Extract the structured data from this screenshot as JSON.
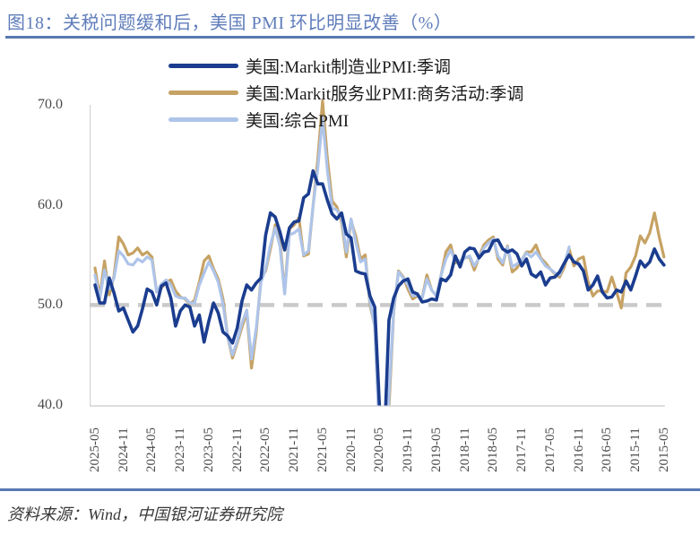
{
  "title": "图18：关税问题缓和后，美国 PMI 环比明显改善（%）",
  "source": "资料来源：Wind，中国银河证券研究院",
  "theme": {
    "title_color": "#5F7DBB",
    "rule_color": "#5878B2",
    "reference_line_color": "#C9C9C9",
    "axis_line_color": "#D4D4D4",
    "tick_label_color": "#4A4A4A"
  },
  "chart_data": {
    "type": "line",
    "title": "图18：关税问题缓和后，美国 PMI 环比明显改善（%）",
    "xlabel": "",
    "ylabel": "",
    "ylim": [
      40,
      70
    ],
    "y_ticks": [
      "70.0",
      "60.0",
      "50.0",
      "40.0"
    ],
    "y_tick_values": [
      70,
      60,
      50,
      40
    ],
    "reference_line": 50.0,
    "grid": false,
    "legend_position": "top",
    "x_axis_note": "monthly data, time axis reversed: newest (2025-05) at left, oldest (2015-05) at right",
    "x_monthly_left": "2025-05",
    "x_monthly_right": "2015-05",
    "x_tick_labels": [
      "2025-05",
      "2024-11",
      "2024-05",
      "2023-11",
      "2023-05",
      "2022-11",
      "2022-05",
      "2021-11",
      "2021-05",
      "2020-11",
      "2020-05",
      "2019-11",
      "2019-05",
      "2018-11",
      "2018-05",
      "2017-11",
      "2017-05",
      "2016-11",
      "2016-05",
      "2015-11",
      "2015-05"
    ],
    "series": [
      {
        "name": "美国:Markit制造业PMI:季调",
        "color": "#1B3D8F",
        "width": 3.6,
        "z": 3,
        "values": [
          52.0,
          50.2,
          50.2,
          52.7,
          51.2,
          49.4,
          49.7,
          48.5,
          47.3,
          47.9,
          49.6,
          51.6,
          51.3,
          50.0,
          51.9,
          52.2,
          50.7,
          47.9,
          49.4,
          50.0,
          49.8,
          47.9,
          49.0,
          46.3,
          48.4,
          50.2,
          49.2,
          47.3,
          46.9,
          46.2,
          47.7,
          50.4,
          52.0,
          51.5,
          52.2,
          52.7,
          57.0,
          59.2,
          58.8,
          57.3,
          55.5,
          57.7,
          58.3,
          58.4,
          60.7,
          61.1,
          63.4,
          62.1,
          62.1,
          60.5,
          59.1,
          58.6,
          59.2,
          57.1,
          56.7,
          53.4,
          53.2,
          53.1,
          50.9,
          49.8,
          39.8,
          36.1,
          48.5,
          50.7,
          51.9,
          52.4,
          52.6,
          51.3,
          51.1,
          50.3,
          50.4,
          50.6,
          50.5,
          52.6,
          52.4,
          53.0,
          54.9,
          53.8,
          55.3,
          55.7,
          55.6,
          54.7,
          55.3,
          55.4,
          56.4,
          56.5,
          55.6,
          55.3,
          55.5,
          55.1,
          53.9,
          54.6,
          53.1,
          52.8,
          53.3,
          52.0,
          52.7,
          52.8,
          53.3,
          54.2,
          55.0,
          54.3,
          54.1,
          53.4,
          51.5,
          52.0,
          52.9,
          51.3,
          50.7,
          50.8,
          51.5,
          51.3,
          52.4,
          51.5,
          52.9,
          54.4,
          53.8,
          54.3,
          55.6,
          54.6,
          54.0
        ]
      },
      {
        "name": "美国:Markit服务业PMI:商务活动:季调",
        "color": "#C6A263",
        "width": 3.2,
        "z": 1,
        "values": [
          53.7,
          50.8,
          54.4,
          51.0,
          52.9,
          56.8,
          56.1,
          55.0,
          55.2,
          55.7,
          55.0,
          55.3,
          54.8,
          51.3,
          51.7,
          52.3,
          52.5,
          51.4,
          50.8,
          50.6,
          50.1,
          50.5,
          52.3,
          54.4,
          54.9,
          53.6,
          52.6,
          50.6,
          46.8,
          44.7,
          46.2,
          47.8,
          49.3,
          43.7,
          47.3,
          52.7,
          53.4,
          55.6,
          58.0,
          56.5,
          51.2,
          57.6,
          58.0,
          58.7,
          54.9,
          55.1,
          59.9,
          64.6,
          70.4,
          64.7,
          60.4,
          59.8,
          58.3,
          54.8,
          58.4,
          56.9,
          54.6,
          55.0,
          50.0,
          47.9,
          37.5,
          26.7,
          39.8,
          49.4,
          53.4,
          52.8,
          51.6,
          50.6,
          50.9,
          50.7,
          53.0,
          51.5,
          50.9,
          53.0,
          55.3,
          56.0,
          54.2,
          54.4,
          54.7,
          54.8,
          53.5,
          54.8,
          56.0,
          56.5,
          56.8,
          54.6,
          54.0,
          55.9,
          53.3,
          53.7,
          54.5,
          55.3,
          55.3,
          56.0,
          54.7,
          54.2,
          53.6,
          53.1,
          52.8,
          53.8,
          55.6,
          53.9,
          54.6,
          54.8,
          52.3,
          50.9,
          51.4,
          51.4,
          51.3,
          52.8,
          51.3,
          49.7,
          53.2,
          53.8,
          54.9,
          56.9,
          56.2,
          57.2,
          59.2,
          56.8,
          54.8
        ]
      },
      {
        "name": "美国:综合PMI",
        "color": "#AEC4E9",
        "width": 3.2,
        "z": 2,
        "values": [
          53.0,
          50.6,
          53.5,
          51.6,
          52.7,
          55.4,
          54.9,
          54.1,
          54.0,
          54.6,
          54.3,
          54.8,
          54.5,
          51.3,
          52.1,
          52.5,
          52.0,
          50.9,
          50.7,
          50.7,
          50.2,
          50.2,
          52.0,
          53.2,
          54.3,
          53.4,
          52.3,
          50.1,
          46.8,
          45.0,
          46.4,
          48.2,
          49.5,
          44.6,
          47.7,
          52.3,
          53.6,
          56.0,
          57.7,
          55.9,
          51.1,
          57.0,
          57.2,
          57.6,
          55.0,
          55.4,
          59.9,
          63.7,
          68.7,
          63.5,
          59.7,
          59.5,
          58.7,
          55.3,
          58.6,
          56.3,
          54.3,
          54.6,
          50.3,
          47.9,
          37.0,
          27.0,
          40.9,
          49.6,
          53.3,
          52.7,
          52.0,
          50.9,
          51.0,
          50.7,
          52.6,
          51.5,
          50.9,
          53.0,
          54.6,
          55.5,
          54.4,
          54.4,
          54.7,
          54.9,
          53.9,
          54.7,
          55.7,
          56.2,
          56.6,
          54.9,
          54.2,
          55.8,
          53.8,
          54.1,
          54.5,
          55.2,
          54.8,
          55.3,
          54.6,
          53.9,
          53.6,
          53.2,
          53.0,
          54.1,
          55.8,
          null,
          null,
          null,
          null,
          null,
          null,
          null,
          null,
          null,
          null,
          null,
          null,
          null,
          null,
          null,
          null,
          null,
          null,
          null,
          null
        ]
      }
    ]
  }
}
